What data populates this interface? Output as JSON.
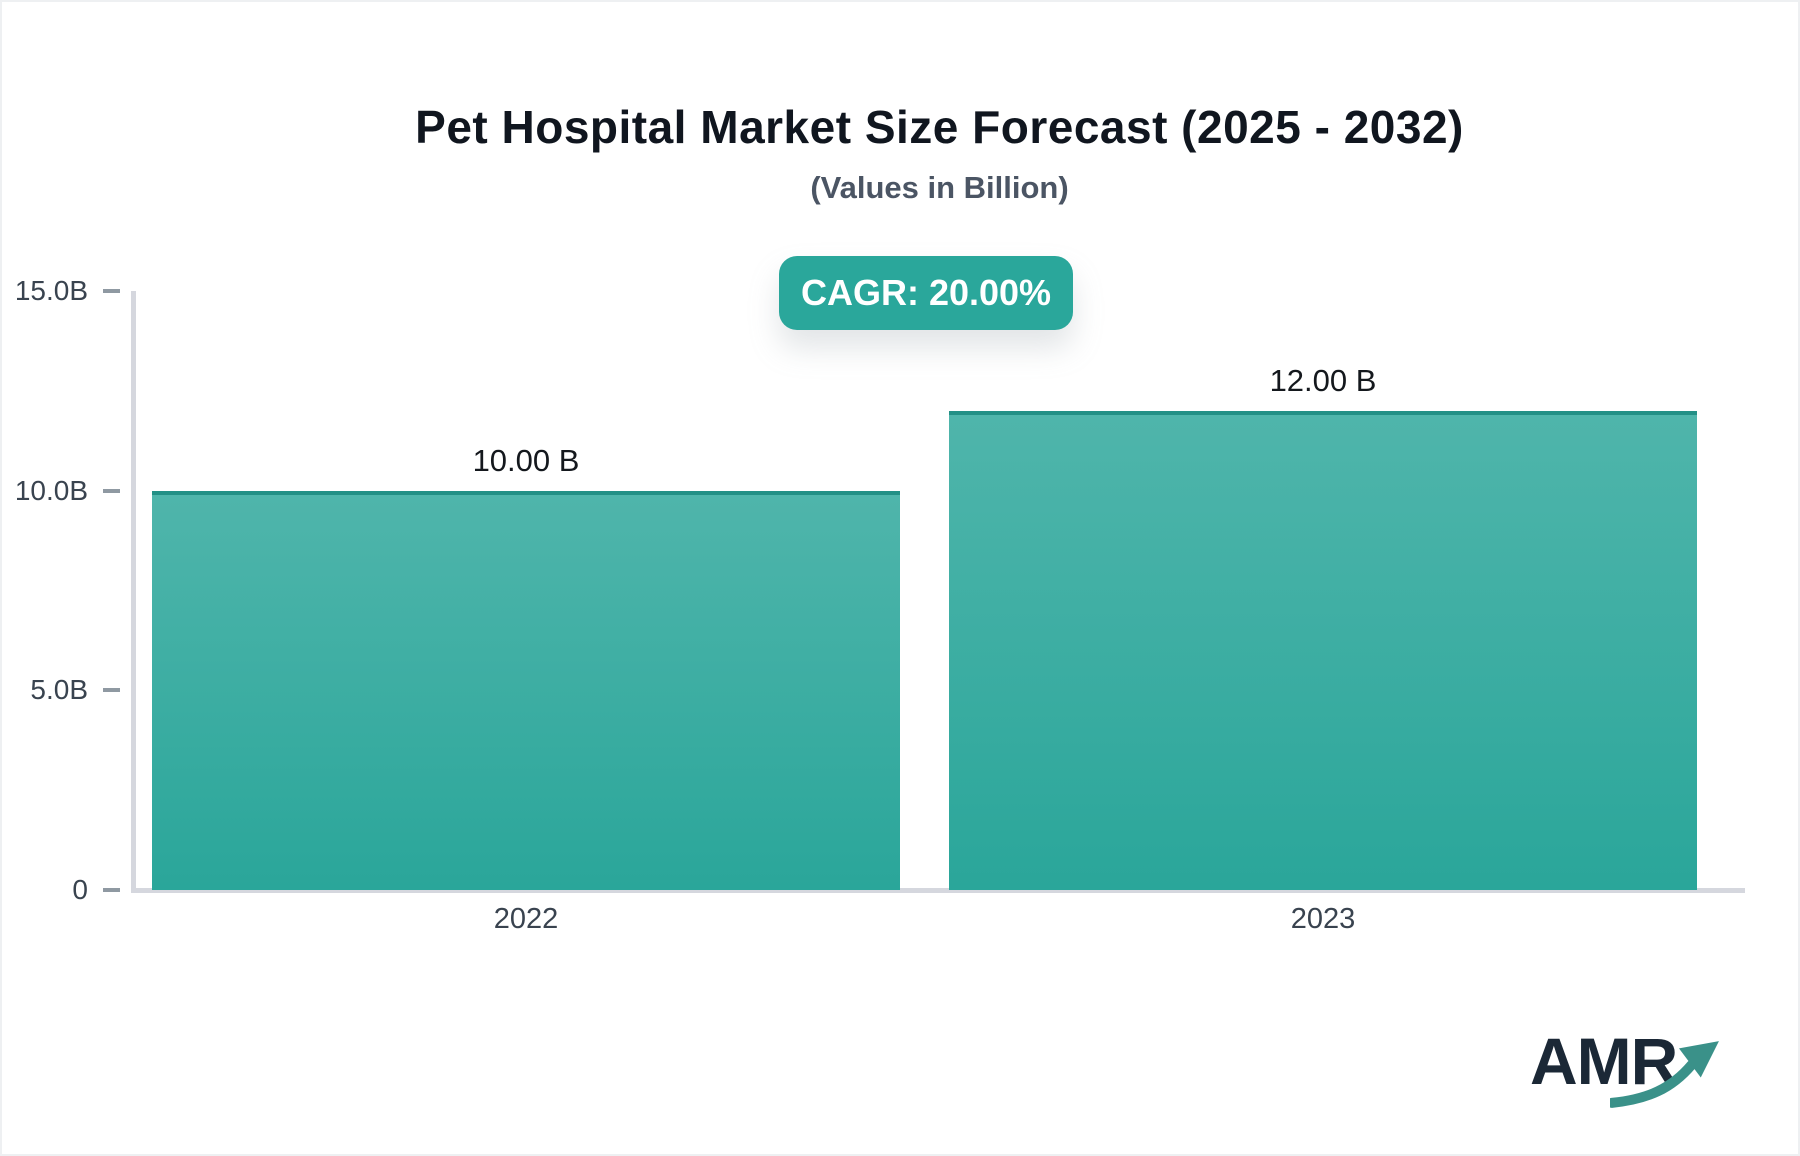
{
  "title": "Pet Hospital Market Size Forecast (2025 - 2032)",
  "subtitle": "(Values in Billion)",
  "cagr_label": "CAGR: 20.00%",
  "logo_text": "AMR",
  "colors": {
    "badge": "#2aa79b",
    "bar_top": "#4fb5ab",
    "bar_bottom": "#2aa69a",
    "bar_cap": "#239086",
    "axis_line": "#d5d7de",
    "logo_navy": "#1b2836",
    "logo_arrow": "#3a9189"
  },
  "chart_data": {
    "type": "bar",
    "title": "Pet Hospital Market Size Forecast (2025 - 2032)",
    "subtitle": "(Values in Billion)",
    "cagr_percent": 20.0,
    "unit": "Billion",
    "categories": [
      "2022",
      "2023"
    ],
    "values": [
      10.0,
      12.0
    ],
    "value_labels": [
      "10.00 B",
      "12.00 B"
    ],
    "ylim": [
      0,
      15
    ],
    "yticks": [
      {
        "label": "15.0B",
        "value": 15
      },
      {
        "label": "10.0B",
        "value": 10
      },
      {
        "label": "5.0B",
        "value": 5
      },
      {
        "label": "0",
        "value": 0
      }
    ],
    "grid": false,
    "legend": false
  }
}
